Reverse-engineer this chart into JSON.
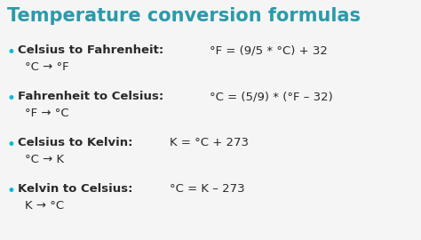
{
  "title": "Temperature conversion formulas",
  "title_color": "#2a9aaa",
  "title_fontsize": 15,
  "background_color": "#f5f5f5",
  "bullet_color": "#00bcd4",
  "text_color": "#2a2a2a",
  "figwidth": 4.74,
  "figheight": 2.7,
  "dpi": 100,
  "items": [
    {
      "label": "Celsius to Fahrenheit:",
      "formula": "  °F = (9/5 * °C) + 32",
      "arrow": "°C → °F"
    },
    {
      "label": "Fahrenheit to Celsius:",
      "formula": "  °C = (5/9) * (°F – 32)",
      "arrow": "°F → °C"
    },
    {
      "label": "Celsius to Kelvin:",
      "formula": "  K = °C + 273",
      "arrow": "°C → K"
    },
    {
      "label": "Kelvin to Celsius:",
      "formula": "  °C = K – 273",
      "arrow": "K → °C"
    }
  ]
}
